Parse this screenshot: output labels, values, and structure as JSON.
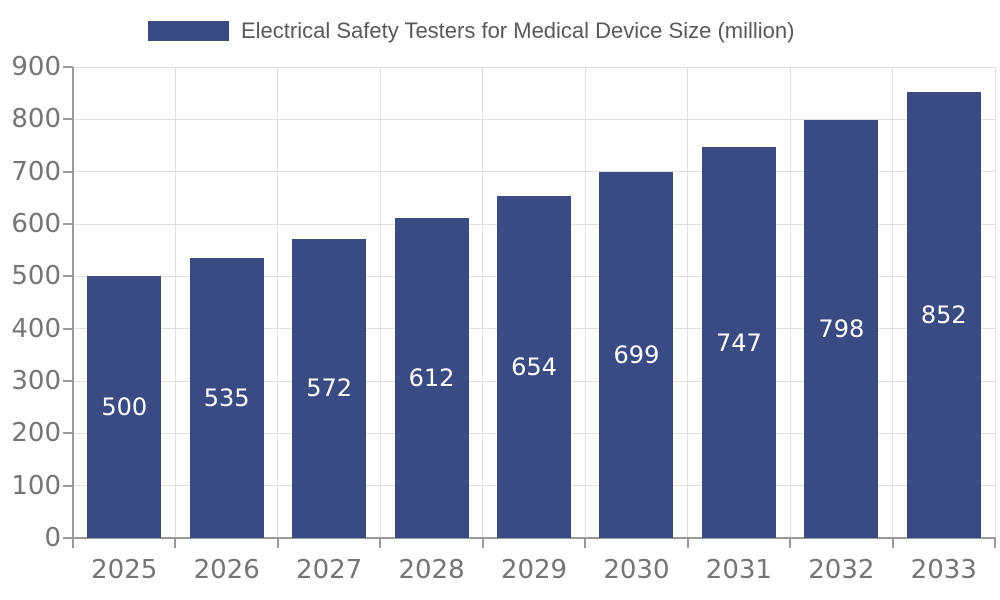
{
  "chart_data": {
    "type": "bar",
    "title": "Electrical Safety Testers for Medical Device Size (million)",
    "categories": [
      "2025",
      "2026",
      "2027",
      "2028",
      "2029",
      "2030",
      "2031",
      "2032",
      "2033"
    ],
    "values": [
      500,
      535,
      572,
      612,
      654,
      699,
      747,
      798,
      852
    ],
    "xlabel": "",
    "ylabel": "",
    "ylim": [
      0,
      900
    ],
    "yticks": [
      0,
      100,
      200,
      300,
      400,
      500,
      600,
      700,
      800,
      900
    ],
    "grid": true,
    "legend_position": "top-left",
    "value_labels": "inside-center",
    "colors": {
      "bar": "#3a4a83",
      "value_label": "#ffffff",
      "grid_line": "#e0e0e0",
      "axis_line": "#9a9a9a",
      "tick_label": "#757575",
      "title_text": "#595959",
      "background": "#ffffff"
    }
  }
}
